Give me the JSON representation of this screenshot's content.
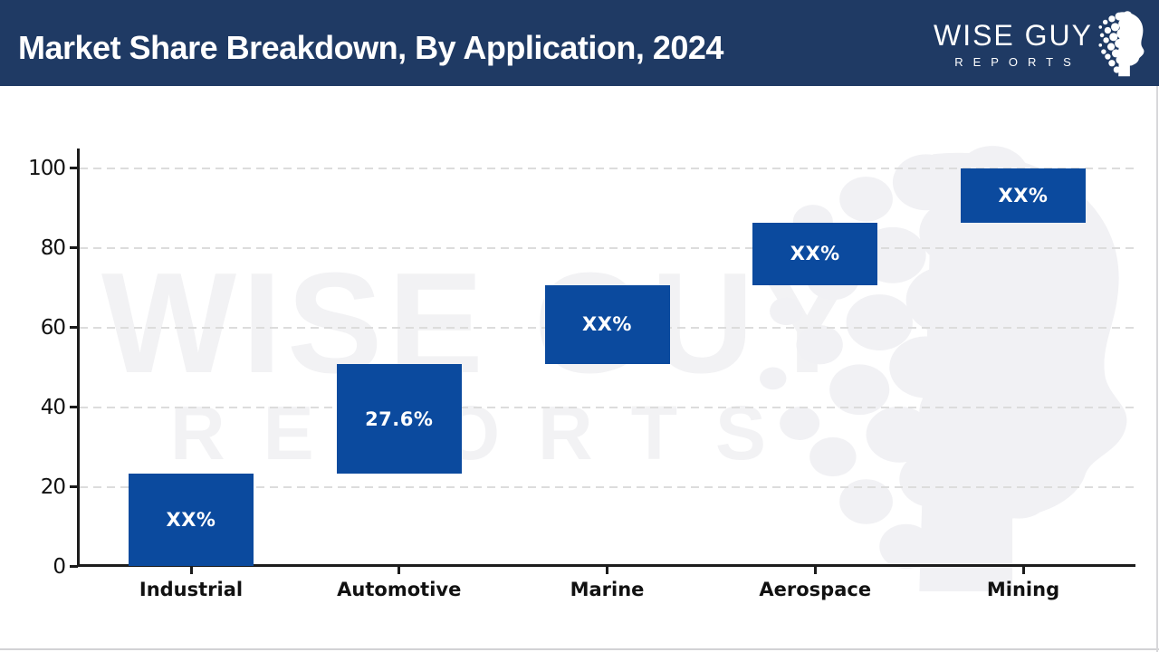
{
  "header": {
    "title": "Market Share Breakdown, By Application, 2024",
    "logo": {
      "line1": "WISE GUY",
      "line2": "REPORTS"
    }
  },
  "watermark": {
    "line1": "WISE GUY",
    "line2": "REPORTS"
  },
  "chart_data": {
    "type": "bar",
    "subtype": "floating-waterfall",
    "title": "Market Share Breakdown, By Application, 2024",
    "categories": [
      "Industrial",
      "Automotive",
      "Marine",
      "Aerospace",
      "Mining"
    ],
    "segments": [
      {
        "category": "Industrial",
        "start": 0,
        "end": 23.2,
        "label": "XX%"
      },
      {
        "category": "Automotive",
        "start": 23.2,
        "end": 50.8,
        "label": "27.6%"
      },
      {
        "category": "Marine",
        "start": 50.8,
        "end": 70.7,
        "label": "XX%"
      },
      {
        "category": "Aerospace",
        "start": 70.7,
        "end": 86.3,
        "label": "XX%"
      },
      {
        "category": "Mining",
        "start": 86.3,
        "end": 100,
        "label": "XX%"
      }
    ],
    "xlabel": "",
    "ylabel": "",
    "yticks": [
      0,
      20,
      40,
      60,
      80,
      100
    ],
    "ylim": [
      0,
      105
    ],
    "grid": "horizontal-dashed",
    "legend_position": "none"
  },
  "colors": {
    "header_bg": "#1F3A64",
    "bar": "#0B4A9E",
    "bar_label": "#FFFFFF",
    "grid": "#DCDCDC",
    "axis": "#1C1C1C",
    "watermark": "#F2F2F4"
  }
}
